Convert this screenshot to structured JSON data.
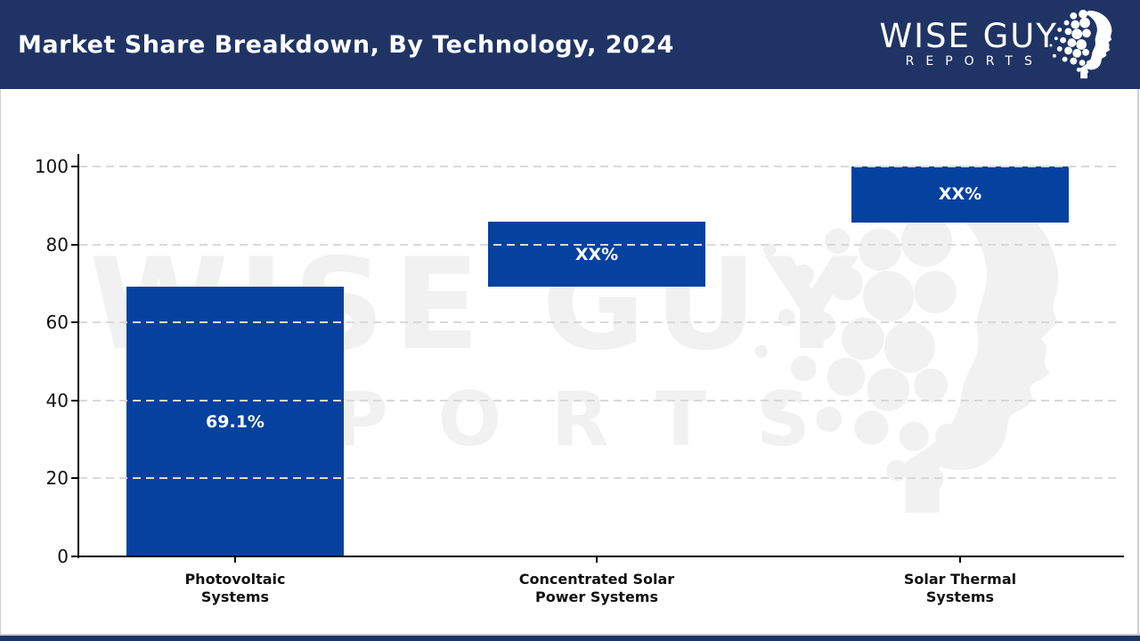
{
  "header": {
    "title": "Market Share Breakdown, By Technology, 2024",
    "bg_color": "#1f3465",
    "logo": {
      "line1": "WISE GUY",
      "line2": "REPORTS"
    }
  },
  "watermark": {
    "line1": "WISE GUY",
    "line2": "REPORTS"
  },
  "chart_data": {
    "type": "bar",
    "subtype": "floating-segment-waterfall",
    "title": "Market Share Breakdown, By Technology, 2024",
    "categories": [
      [
        "Photovoltaic",
        "Systems"
      ],
      [
        "Concentrated Solar",
        "Power Systems"
      ],
      [
        "Solar Thermal",
        "Systems"
      ]
    ],
    "bars": [
      {
        "category": "Photovoltaic Systems",
        "start": 0,
        "end": 69.1,
        "label": "69.1%"
      },
      {
        "category": "Concentrated Solar Power Systems",
        "start": 69.1,
        "end": 85.8,
        "label": "XX%"
      },
      {
        "category": "Solar Thermal Systems",
        "start": 85.7,
        "end": 100,
        "label": "XX%"
      }
    ],
    "yticks": [
      0,
      20,
      40,
      60,
      80,
      100
    ],
    "ylim": [
      0,
      103
    ],
    "xlabel": "",
    "ylabel": "",
    "legend": "none",
    "grid": "horizontal-dashed",
    "bar_color": "#05419e",
    "bar_label_color": "#ffffff",
    "axis_color": "#000000",
    "gridline_color": "#d9d9d9"
  }
}
